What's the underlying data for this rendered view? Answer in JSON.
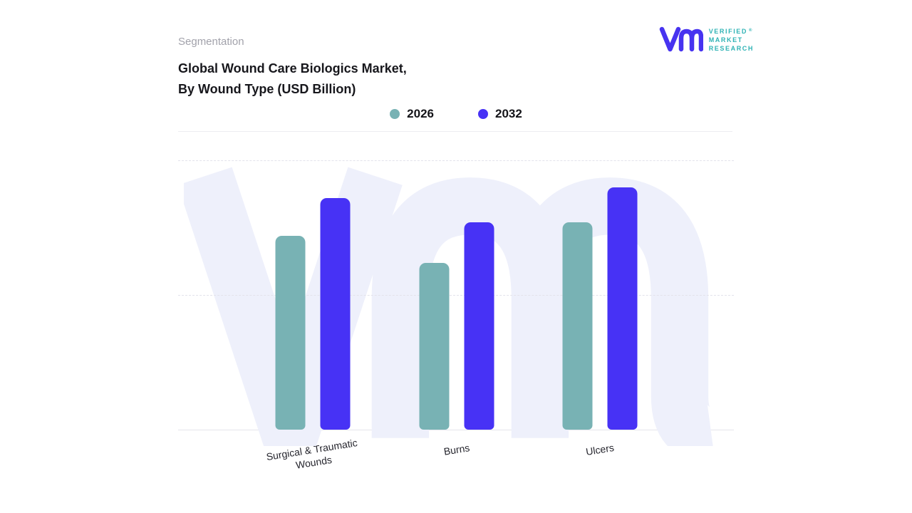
{
  "header": {
    "eyebrow": "Segmentation",
    "title_line1": "Global Wound Care Biologics Market,",
    "title_line2": "By Wound Type (USD Billion)"
  },
  "logo": {
    "lines": [
      "VERIFIED",
      "MARKET",
      "RESEARCH"
    ],
    "registered_mark": "®",
    "mark_color": "#4733f0",
    "text_color": "#2fb3b5"
  },
  "chart_data": {
    "type": "bar",
    "title": "Global Wound Care Biologics Market, By Wound Type (USD Billion)",
    "units": "USD Billion",
    "categories": [
      "Surgical & Traumatic Wounds",
      "Burns",
      "Ulcers"
    ],
    "series": [
      {
        "name": "2026",
        "color": "#78b2b4",
        "values": [
          72,
          62,
          77
        ]
      },
      {
        "name": "2032",
        "color": "#4732f5",
        "values": [
          86,
          77,
          90
        ]
      }
    ],
    "xlabel": "",
    "ylabel": "",
    "ylim": [
      0,
      100
    ],
    "gridlines_at": [
      100,
      50
    ],
    "grid": "dashed horizontal",
    "legend_position": "top-center",
    "note": "Y-axis is unlabeled in the source image; values are relative bar heights (% of plot height)."
  }
}
